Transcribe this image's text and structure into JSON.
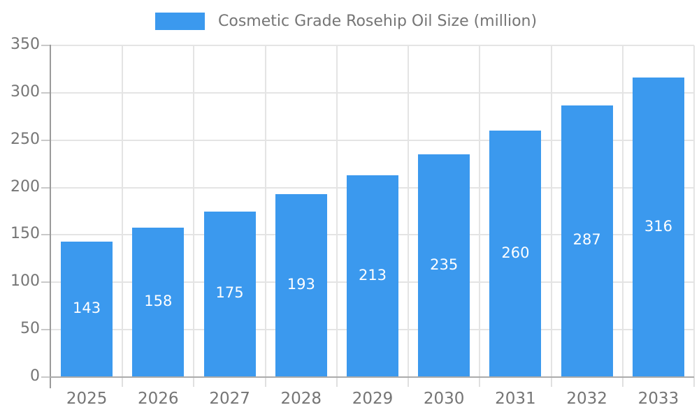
{
  "chart_data": {
    "type": "bar",
    "title": "Cosmetic Grade Rosehip Oil Size (million)",
    "categories": [
      "2025",
      "2026",
      "2027",
      "2028",
      "2029",
      "2030",
      "2031",
      "2032",
      "2033"
    ],
    "values": [
      143,
      158,
      175,
      193,
      213,
      235,
      260,
      287,
      316
    ],
    "series": [
      {
        "name": "Cosmetic Grade Rosehip Oil Size (million)",
        "values": [
          143,
          158,
          175,
          193,
          213,
          235,
          260,
          287,
          316
        ]
      }
    ],
    "xlabel": "",
    "ylabel": "",
    "ylim": [
      0,
      350
    ],
    "yticks": [
      0,
      50,
      100,
      150,
      200,
      250,
      300,
      350
    ],
    "grid": true,
    "legend_position": "top-center",
    "value_labels": "inside-center",
    "colors": {
      "bar": "#3B99EE",
      "value_label": "#ffffff",
      "axis_text": "#757575",
      "gridline": "#e4e4e4",
      "y_axis_line": "#9a9a9a",
      "x_axis_line": "#ababab",
      "y_tick": "#c9c9c9",
      "x_tick": "#e0e0e0"
    }
  }
}
